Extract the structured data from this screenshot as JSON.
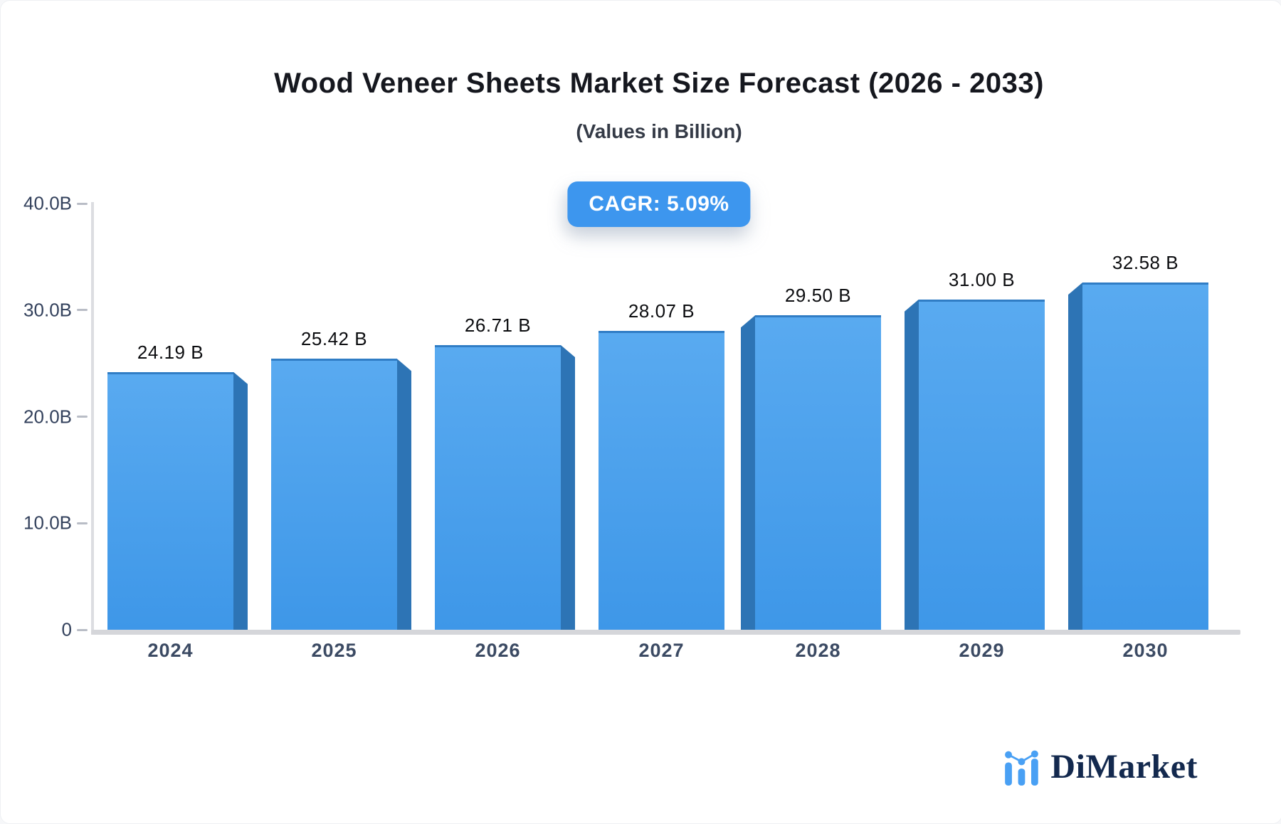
{
  "header": {
    "title": "Wood Veneer Sheets Market Size Forecast (2026 - 2033)",
    "subtitle": "(Values in Billion)",
    "cagr_badge": "CAGR: 5.09%"
  },
  "chart_data": {
    "type": "bar",
    "title": "Wood Veneer Sheets Market Size Forecast (2026 - 2033)",
    "subtitle": "(Values in Billion)",
    "cagr": "5.09%",
    "categories": [
      "2024",
      "2025",
      "2026",
      "2027",
      "2028",
      "2029",
      "2030"
    ],
    "values": [
      24.19,
      25.42,
      26.71,
      28.07,
      29.5,
      31.0,
      32.58
    ],
    "value_labels": [
      "24.19 B",
      "25.42 B",
      "26.71 B",
      "28.07 B",
      "29.50 B",
      "31.00 B",
      "32.58 B"
    ],
    "unit": "Billion",
    "ylim": [
      0,
      40
    ],
    "yticks": [
      {
        "value": 0,
        "label": "0"
      },
      {
        "value": 10,
        "label": "10.0B"
      },
      {
        "value": 20,
        "label": "20.0B"
      },
      {
        "value": 30,
        "label": "30.0B"
      },
      {
        "value": 40,
        "label": "40.0B"
      }
    ],
    "grid": false,
    "legend": false,
    "style": "3d-perspective-bars"
  },
  "colors": {
    "bar_face_top": "#59aaf0",
    "bar_face_bottom": "#3e97e8",
    "bar_side": "#2d74b5",
    "badge_bg": "#3d96ee",
    "badge_text": "#ffffff",
    "axis_line": "#dcdde1",
    "tick_text": "#33415c",
    "logo_blue": "#49a0f4",
    "logo_navy": "#13294e"
  },
  "branding": {
    "logo_text": "DiMarket"
  }
}
